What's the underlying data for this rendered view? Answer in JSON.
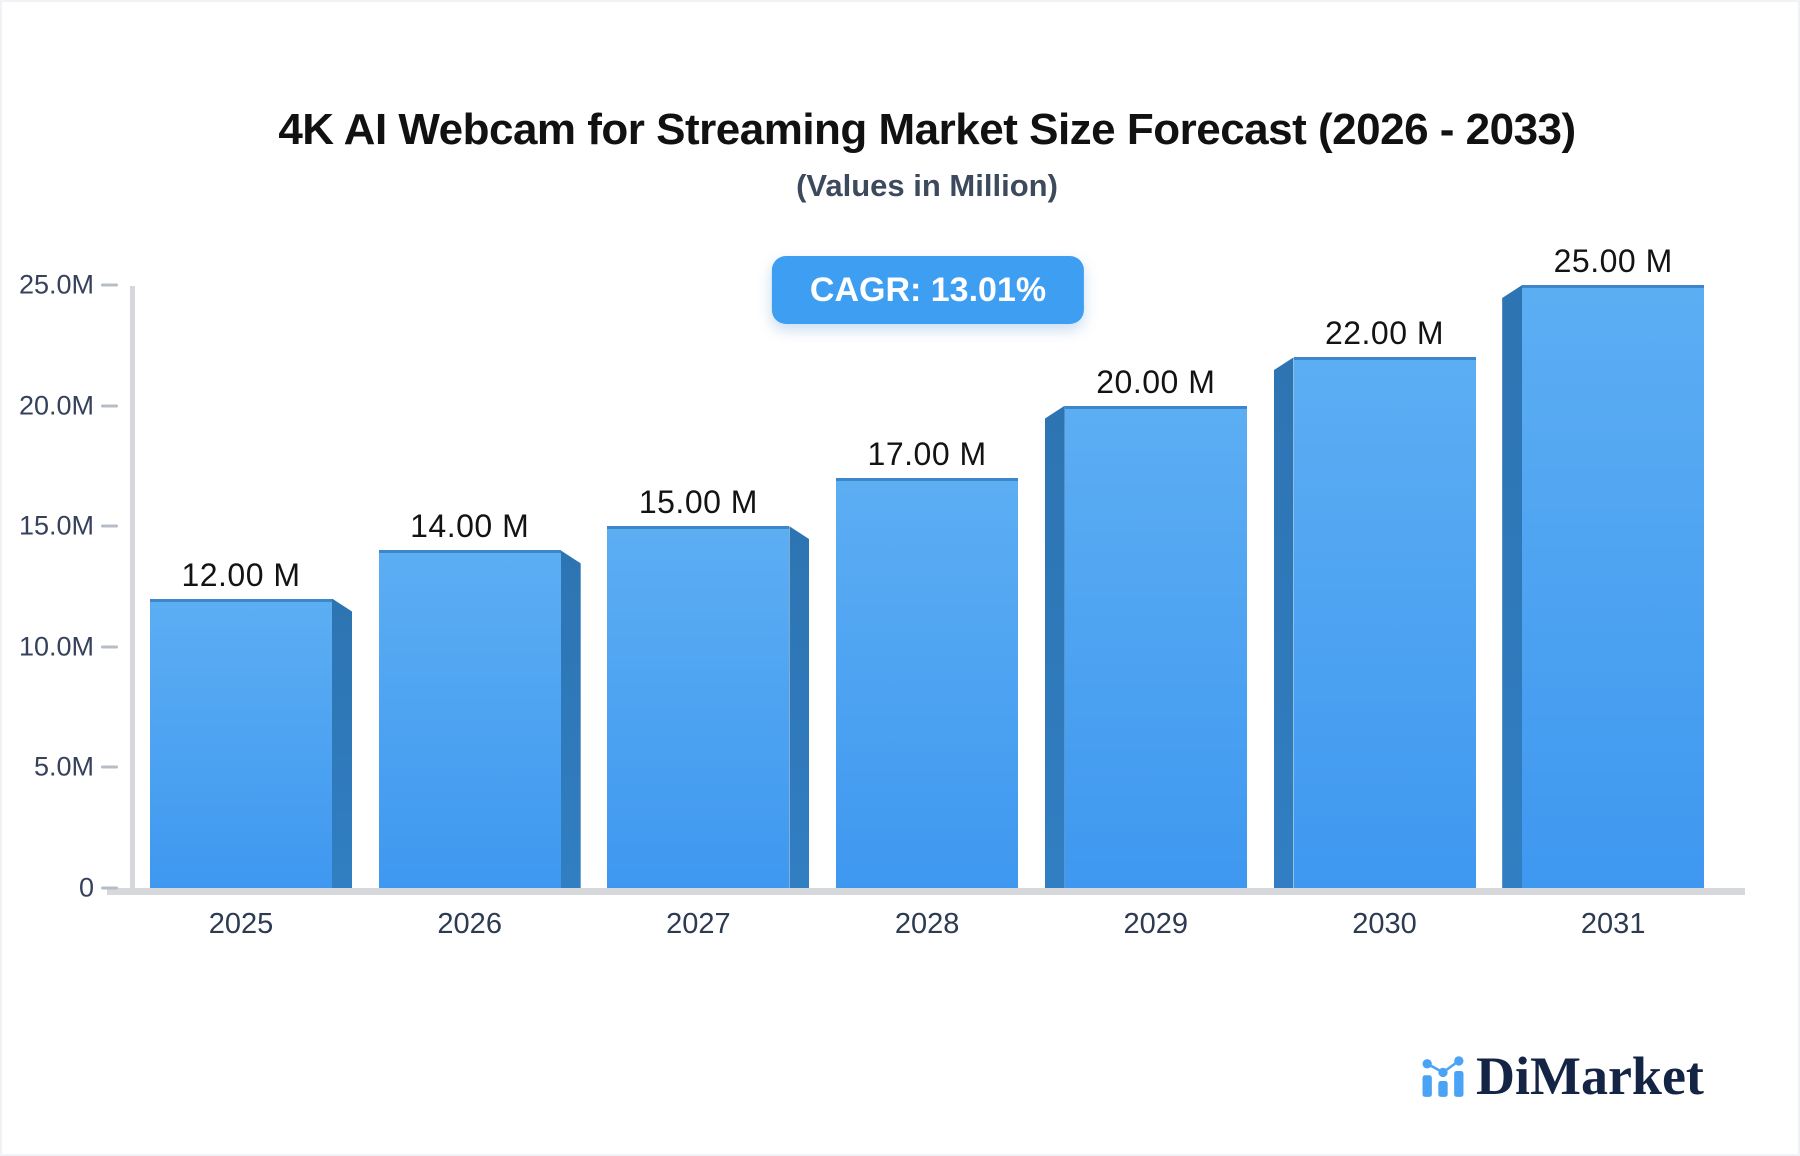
{
  "header": {
    "title": "4K AI Webcam for Streaming Market Size Forecast (2026 - 2033)",
    "subtitle": "(Values in Million)",
    "cagr_badge": "CAGR: 13.01%"
  },
  "chart_data": {
    "type": "bar",
    "title": "4K AI Webcam for Streaming Market Size Forecast (2026 - 2033)",
    "subtitle": "(Values in Million)",
    "categories": [
      "2025",
      "2026",
      "2027",
      "2028",
      "2029",
      "2030",
      "2031"
    ],
    "values": [
      12,
      14,
      15,
      17,
      20,
      22,
      25
    ],
    "value_labels": [
      "12.00 M",
      "14.00 M",
      "15.00 M",
      "17.00 M",
      "20.00 M",
      "22.00 M",
      "25.00 M"
    ],
    "unit": "Million",
    "xlabel": "",
    "ylabel": "",
    "ylim": [
      0,
      25
    ],
    "ytick_values": [
      0,
      5,
      10,
      15,
      20,
      25
    ],
    "ytick_labels": [
      "0",
      "5.0M",
      "10.0M",
      "15.0M",
      "20.0M",
      "25.0M"
    ],
    "grid": false,
    "legend": false,
    "bar_style": "3d-perspective-blue"
  },
  "colors": {
    "bar_top": "#5caef3",
    "bar_bottom": "#3f98f0",
    "bar_side": "#2e77b7",
    "bar_edge": "#3d86cc",
    "badge_bg": "#3d9ef2",
    "badge_text": "#ffffff",
    "axis_line": "#d6d8dc",
    "tick_text": "#36415c",
    "year_text": "#2c3a52",
    "value_text": "#131313",
    "title_text": "#111111",
    "subtitle_text": "#3d4a5e",
    "logo_text": "#142445",
    "logo_icon": "#4aa3f5"
  },
  "logo": {
    "text": "DiMarket",
    "icon": "bar-line-chart-logo-icon"
  }
}
